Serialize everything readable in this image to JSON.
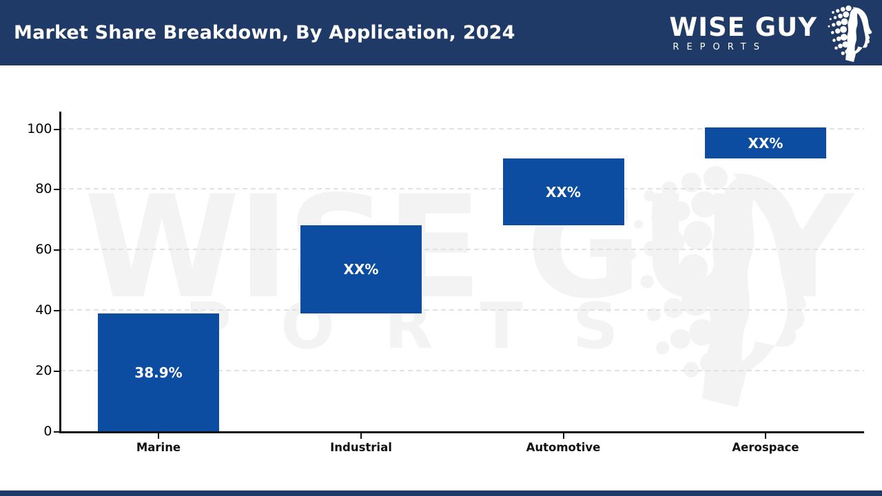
{
  "header": {
    "title": "Market Share Breakdown, By Application, 2024",
    "logo": {
      "line1": "WISE GUY",
      "line2": "REPORTS"
    }
  },
  "watermark": {
    "line1": "WISE GUY",
    "line2": "PORTS"
  },
  "footer": {
    "accent_color": "#1F3A66"
  },
  "colors": {
    "header_bg": "#1F3A66",
    "footer_bg": "#1F3A66",
    "bar_fill": "#0C4DA2",
    "bar_label": "#FFFFFF",
    "gridline": "#E1E1E1",
    "axis": "#111111",
    "watermark": "#F3F3F3"
  },
  "chart_data": {
    "type": "bar",
    "subtype": "waterfall",
    "title": "Market Share Breakdown, By Application, 2024",
    "xlabel": "",
    "ylabel": "",
    "categories": [
      "Marine",
      "Industrial",
      "Automotive",
      "Aerospace"
    ],
    "segments": [
      {
        "category": "Marine",
        "start": 0,
        "end": 38.9,
        "value": 38.9,
        "label": "38.9%"
      },
      {
        "category": "Industrial",
        "start": 38.9,
        "end": 68.0,
        "value": 29.1,
        "label": "XX%"
      },
      {
        "category": "Automotive",
        "start": 68.0,
        "end": 90.1,
        "value": 22.1,
        "label": "XX%"
      },
      {
        "category": "Aerospace",
        "start": 90.1,
        "end": 100.3,
        "value": 10.2,
        "label": "XX%"
      }
    ],
    "ylim": [
      0,
      100
    ],
    "yticks": [
      0,
      20,
      40,
      60,
      80,
      100
    ],
    "grid": true,
    "grid_style": "dashed",
    "legend": "none",
    "bar_color": "#0C4DA2",
    "bar_label_color": "#FFFFFF"
  }
}
